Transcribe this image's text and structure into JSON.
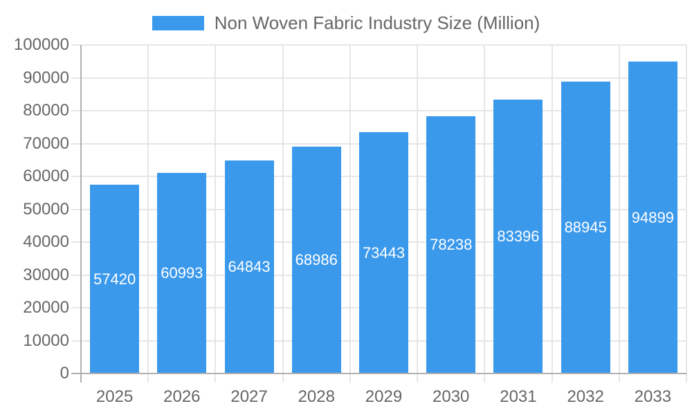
{
  "legend": {
    "label": "Non Woven Fabric Industry Size (Million)"
  },
  "chart_data": {
    "type": "bar",
    "title": "Non Woven Fabric Industry Size (Million)",
    "categories": [
      "2025",
      "2026",
      "2027",
      "2028",
      "2029",
      "2030",
      "2031",
      "2032",
      "2033"
    ],
    "values": [
      57420,
      60993,
      64843,
      68986,
      73443,
      78238,
      83396,
      88945,
      94899
    ],
    "data_labels": [
      "57420",
      "60993",
      "64843",
      "68986",
      "73443",
      "78238",
      "83396",
      "88945",
      "94899"
    ],
    "xlabel": "",
    "ylabel": "",
    "ylim": [
      0,
      100000
    ],
    "y_tick_step": 10000,
    "y_tick_labels": [
      "0",
      "10000",
      "20000",
      "30000",
      "40000",
      "50000",
      "60000",
      "70000",
      "80000",
      "90000",
      "100000"
    ],
    "grid": true,
    "legend_position": "top"
  },
  "colors": {
    "bar": "#3B99EC",
    "grid": "#E6E6E6",
    "zero_line": "#B0B0B0",
    "axis_text": "#666666",
    "bar_label_text": "#FFFFFF",
    "background": "#FFFFFF"
  }
}
